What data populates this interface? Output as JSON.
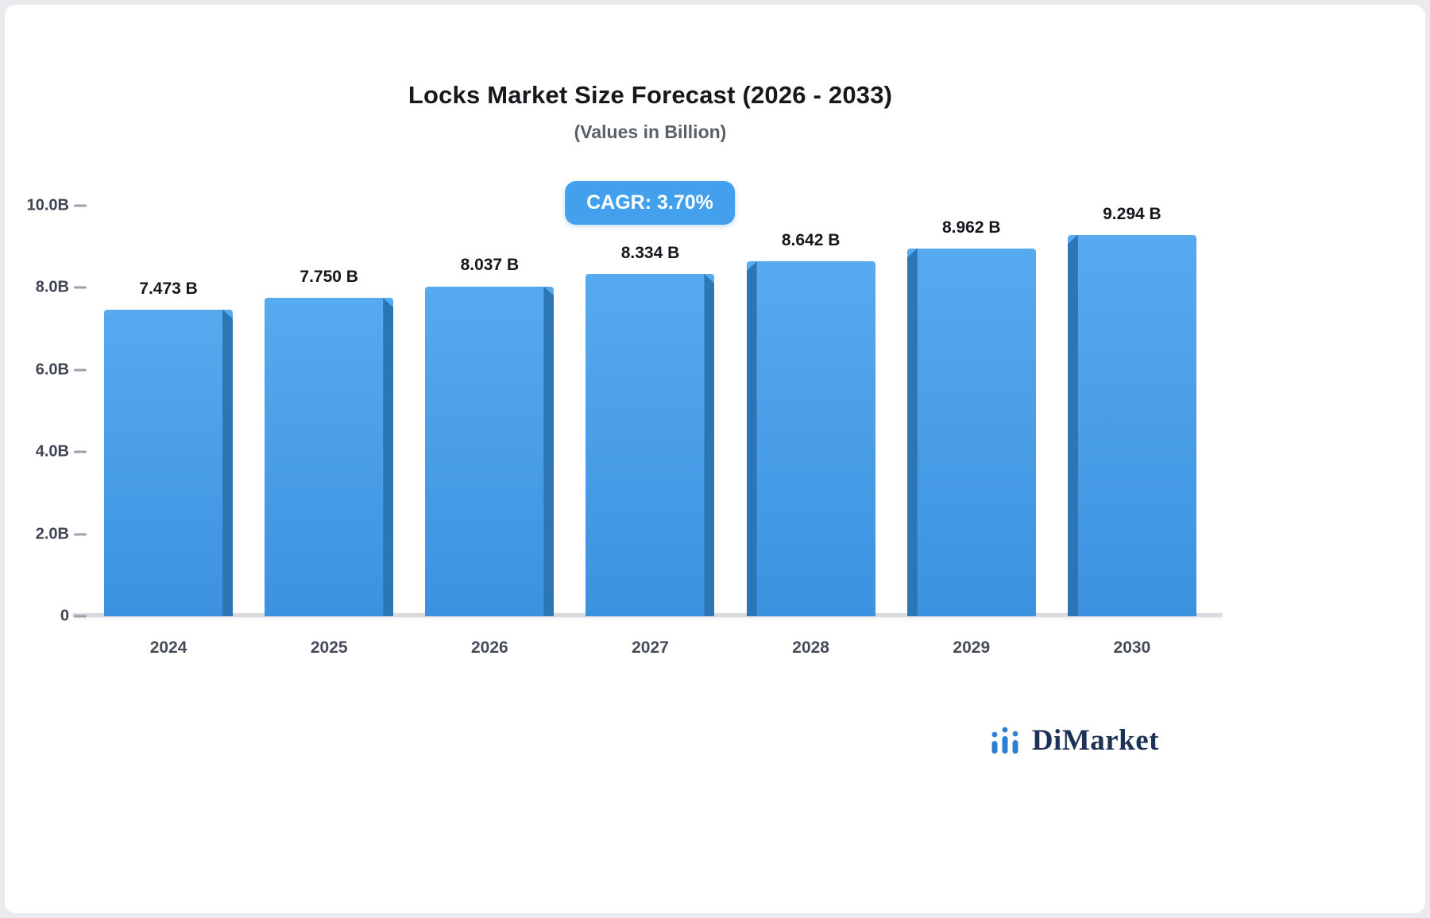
{
  "header": {
    "title": "Locks Market Size Forecast (2026 - 2033)",
    "subtitle": "(Values in Billion)"
  },
  "badge": {
    "label": "CAGR: 3.70%",
    "bg": "#42a0ec"
  },
  "chart_data": {
    "type": "bar",
    "title": "Locks Market Size Forecast (2026 - 2033)",
    "subtitle": "(Values in Billion)",
    "categories": [
      "2024",
      "2025",
      "2026",
      "2027",
      "2028",
      "2029",
      "2030"
    ],
    "values": [
      7.473,
      7.75,
      8.037,
      8.334,
      8.642,
      8.962,
      9.294
    ],
    "value_labels": [
      "7.473 B",
      "7.750 B",
      "8.037 B",
      "8.334 B",
      "8.642 B",
      "8.962 B",
      "9.294 B"
    ],
    "xlabel": "",
    "ylabel": "",
    "ylim": [
      0,
      10
    ],
    "yticks": [
      {
        "value": 0,
        "label": "0"
      },
      {
        "value": 2,
        "label": "2.0B"
      },
      {
        "value": 4,
        "label": "4.0B"
      },
      {
        "value": 6,
        "label": "6.0B"
      },
      {
        "value": 8,
        "label": "8.0B"
      },
      {
        "value": 10,
        "label": "10.0B"
      }
    ],
    "grid": false,
    "legend": null,
    "bar_color_top": "#57aaef",
    "bar_color_bottom": "#3c92e0",
    "bar_side_color": "#2d76b5"
  },
  "logo": {
    "text": "DiMarket",
    "text_color": "#1c3357",
    "icon_color": "#2f7fd1",
    "icon": "bar-chart-logo-icon"
  }
}
